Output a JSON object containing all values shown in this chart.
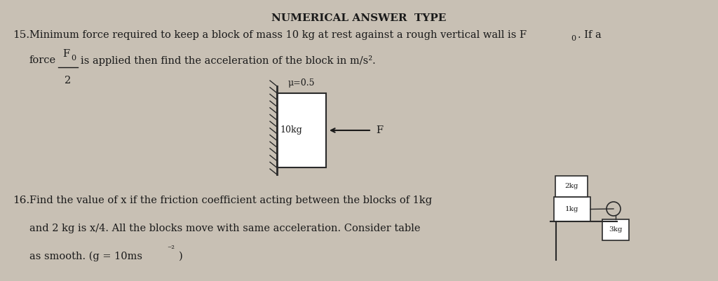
{
  "title": "NUMERICAL ANSWER  TYPE",
  "q15_number": "15.",
  "q15_text1": "Minimum force required to keep a block of mass 10 kg at rest against a rough vertical wall is F",
  "q15_text1b": ". If a",
  "q15_text2_prefix": "force ",
  "q15_frac_num": "F",
  "q15_frac_sub": "0",
  "q15_frac_den": "2",
  "q15_text2_suffix": " is applied then find the acceleration of the block in m/s².",
  "q15_F0_subscript": "0",
  "mu_label": "μ=0.5",
  "mass_label": "10kg",
  "force_label": "F",
  "q16_number": "16.",
  "q16_text1": "Find the value of x if the friction coefficient acting between the blocks of 1kg",
  "q16_text2": "and 2 kg is x/4. All the blocks move with same acceleration. Consider table",
  "q16_text3": "as smooth. (g = 10ms",
  "q16_text3b": "⁻²",
  "q16_text3c": ")",
  "bg_color": "#c8c0b4",
  "text_color": "#1a1a1a",
  "block_color": "#ffffff",
  "wall_color": "#3a3a3a",
  "box2kg": "2kg",
  "box1kg": "1kg",
  "box3kg": "3kg"
}
